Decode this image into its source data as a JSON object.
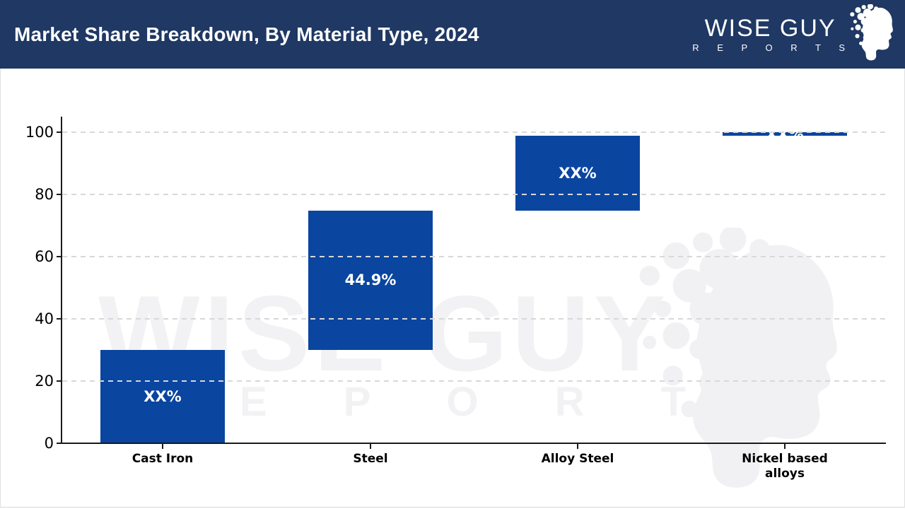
{
  "header": {
    "title": "Market Share Breakdown, By Material Type, 2024",
    "logo": {
      "line1": "WISE GUY",
      "line2": "R E P O R T S"
    }
  },
  "watermark": {
    "line1": "WISE GUY",
    "line2": "R E P O R T S"
  },
  "chart_data": {
    "type": "bar",
    "subtype": "floating-waterfall",
    "title": "Market Share Breakdown, By Material Type, 2024",
    "xlabel": "",
    "ylabel": "",
    "ylim": [
      0,
      100
    ],
    "yticks": [
      0,
      20,
      40,
      60,
      80,
      100
    ],
    "grid": "dashed horizontal gridlines",
    "legend": "none",
    "categories": [
      "Cast Iron",
      "Steel",
      "Alloy Steel",
      "Nickel based alloys"
    ],
    "bars": [
      {
        "category": "Cast Iron",
        "start": 0,
        "end": 30,
        "label": "XX%"
      },
      {
        "category": "Steel",
        "start": 30,
        "end": 74.9,
        "label": "44.9%"
      },
      {
        "category": "Alloy Steel",
        "start": 74.9,
        "end": 99,
        "label": "XX%"
      },
      {
        "category": "Nickel based alloys",
        "start": 99,
        "end": 100,
        "label": "XX%"
      }
    ],
    "colors": {
      "bar": "#0a45a0",
      "header_background": "#1f3864",
      "grid": "#d8d8d8",
      "axis": "#1a1a1a",
      "bar_label_text": "#ffffff",
      "watermark": "#f2f2f4"
    }
  }
}
